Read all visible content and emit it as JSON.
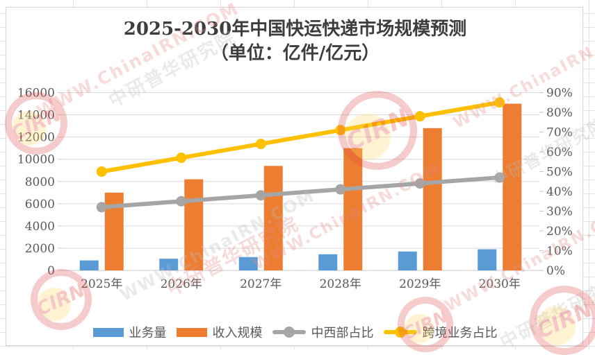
{
  "title": {
    "line1": "2025-2030年中国快运快递市场规模预测",
    "line2": "（单位：亿件/亿元）"
  },
  "chart_data": {
    "type": "combo-bar-line",
    "categories": [
      "2025年",
      "2026年",
      "2027年",
      "2028年",
      "2029年",
      "2030年"
    ],
    "series": [
      {
        "id": "business-volume",
        "name": "业务量",
        "type": "bar",
        "axis": "left",
        "color": "#5B9BD5",
        "values": [
          900,
          1050,
          1200,
          1450,
          1700,
          1900
        ]
      },
      {
        "id": "revenue-scale",
        "name": "收入规模",
        "type": "bar",
        "axis": "left",
        "color": "#ED7D31",
        "values": [
          7000,
          8200,
          9400,
          11000,
          12800,
          15000
        ]
      },
      {
        "id": "central-western-share",
        "name": "中西部占比",
        "type": "line",
        "axis": "right",
        "color": "#A5A5A5",
        "values": [
          32,
          35,
          38,
          41,
          44,
          47
        ]
      },
      {
        "id": "cross-border-share",
        "name": "跨境业务占比",
        "type": "line",
        "axis": "right",
        "color": "#FFC000",
        "values": [
          50,
          57,
          64,
          71,
          78,
          85
        ]
      }
    ],
    "left_axis": {
      "min": 0,
      "max": 16000,
      "step": 2000,
      "ticks": [
        "0",
        "2000",
        "4000",
        "6000",
        "8000",
        "10000",
        "12000",
        "14000",
        "16000"
      ]
    },
    "right_axis": {
      "min": 0,
      "max": 90,
      "step": 10,
      "unit": "%",
      "ticks": [
        "0%",
        "10%",
        "20%",
        "30%",
        "40%",
        "50%",
        "60%",
        "70%",
        "80%",
        "90%"
      ]
    },
    "grid": true,
    "legend_position": "bottom"
  },
  "watermark": {
    "url_text": "WWW.ChinaIRN.COM",
    "brand_text": "中研普华研究院",
    "logo_text": "CIRN"
  },
  "colors": {
    "axis_text": "#595959",
    "gridline": "#d9d9d9",
    "axis_line": "#c9c9c9",
    "title_text": "#3d3d3d",
    "watermark_red": "#e88a8a",
    "watermark_gray": "#bdbdbd"
  }
}
